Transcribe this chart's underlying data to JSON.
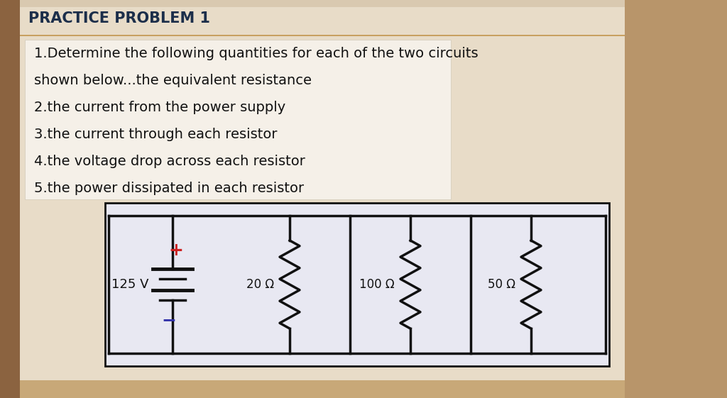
{
  "title": "PRACTICE PROBLEM 1",
  "title_color": "#1c2e4a",
  "title_fontsize": 15,
  "bg_beige": "#d9c9b0",
  "bg_light_beige": "#e8dcc8",
  "bg_white_panel": "#f0ede8",
  "bg_circuit": "#e8e8f0",
  "text_color": "#111111",
  "text_lines": [
    "1.Determine the following quantities for each of the two circuits",
    "shown below...the equivalent resistance",
    "2.the current from the power supply",
    "3.the current through each resistor",
    "4.the voltage drop across each resistor",
    "5.the power dissipated in each resistor"
  ],
  "text_fontsize": 14,
  "voltage": "125 V",
  "resistors": [
    "20 Ω",
    "100 Ω",
    "50 Ω"
  ],
  "circuit_box_color": "#e8e8f2",
  "circuit_line_color": "#111111",
  "plus_color": "#cc2222",
  "minus_color": "#3333aa",
  "brown_border": "#8b6340",
  "title_underline": "#c8a060"
}
